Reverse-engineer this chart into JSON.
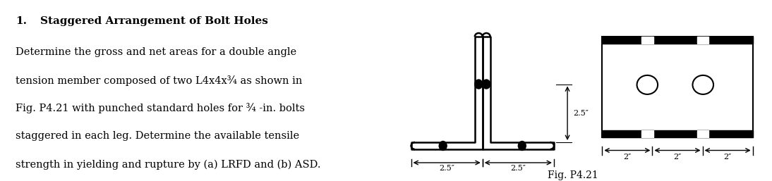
{
  "title_number": "1.",
  "title_text": "Staggered Arrangement of Bolt Holes",
  "body_lines": [
    "Determine the gross and net areas for a double angle",
    "tension member composed of two L4x4x¾ as shown in",
    "Fig. P4.21 with punched standard holes for ¾ -in. bolts",
    "staggered in each leg. Determine the available tensile",
    "strength in yielding and rupture by (a) LRFD and (b) ASD."
  ],
  "fig_caption": "Fig. P4.21",
  "bg_color": "#ffffff",
  "text_color": "#000000",
  "dim_25_left": "2.5″",
  "dim_25_right": "2.5″",
  "dim_25_vert": "2.5″",
  "dim_2_left": "2″",
  "dim_2_mid": "2″",
  "dim_2_right": "2″"
}
